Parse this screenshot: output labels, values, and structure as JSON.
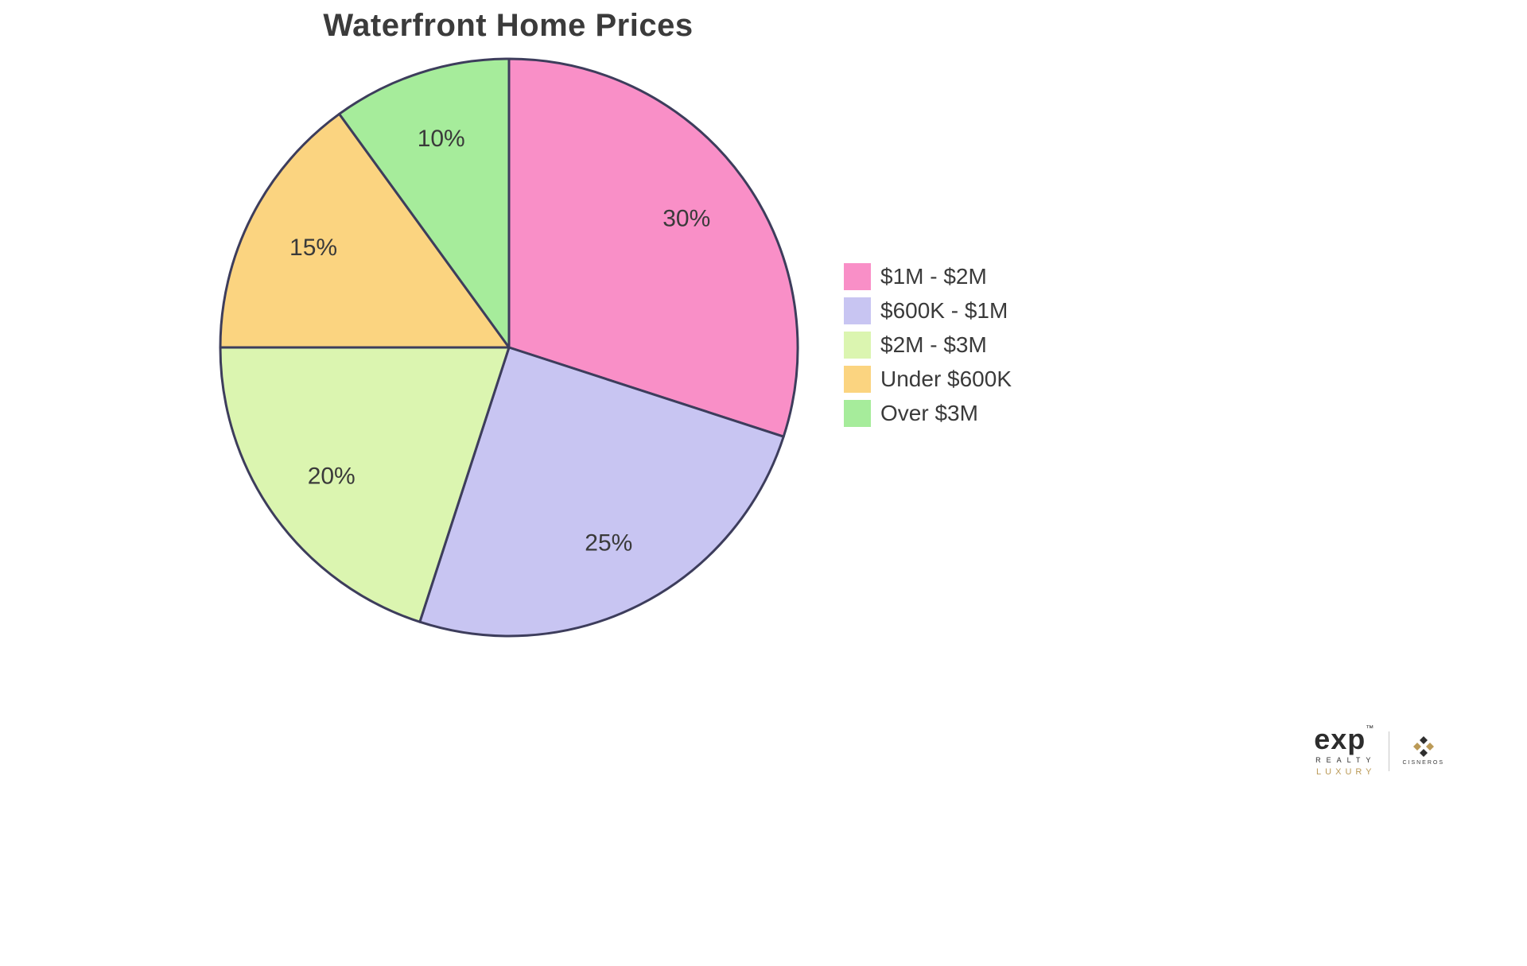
{
  "chart_data": {
    "type": "pie",
    "title": "Waterfront Home Prices",
    "start_angle_deg": 0,
    "direction": "clockwise",
    "legend_position": "right",
    "stroke_color": "#3d3d5c",
    "label_color": "#3a3a3a",
    "slices": [
      {
        "label": "$1M - $2M",
        "value": 30,
        "pct_label": "30%",
        "color": "#F98FC7"
      },
      {
        "label": "$600K - $1M",
        "value": 25,
        "pct_label": "25%",
        "color": "#C8C5F2"
      },
      {
        "label": "$2M - $3M",
        "value": 20,
        "pct_label": "20%",
        "color": "#DBF5B0"
      },
      {
        "label": "Under $600K",
        "value": 15,
        "pct_label": "15%",
        "color": "#FBD480"
      },
      {
        "label": "Over $3M",
        "value": 10,
        "pct_label": "10%",
        "color": "#A6EC9B"
      }
    ]
  },
  "branding": {
    "exp_wordmark": "exp",
    "exp_trademark": "™",
    "exp_realty": "REALTY",
    "exp_luxury": "LUXURY",
    "partner_name": "CISNEROS",
    "gold_color": "#bb9a57"
  }
}
